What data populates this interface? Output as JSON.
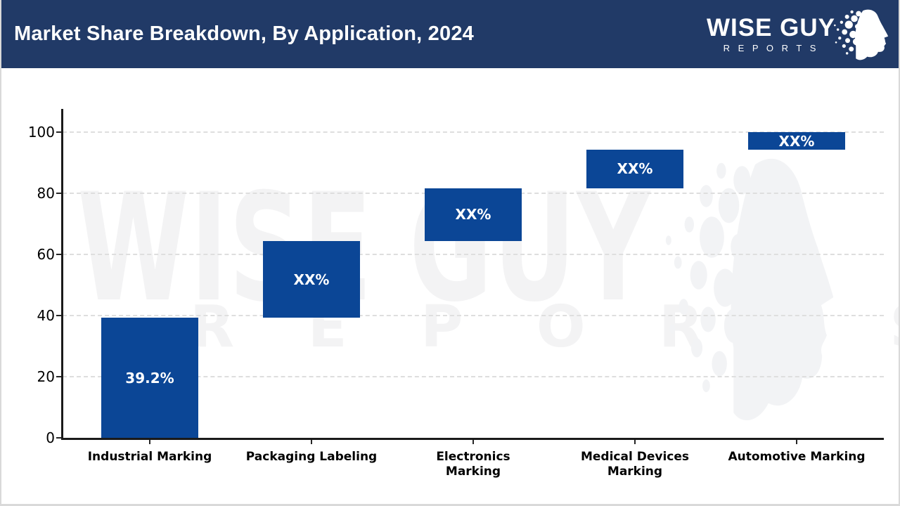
{
  "header": {
    "title": "Market Share Breakdown, By Application, 2024",
    "logo": {
      "primary": "WISE GUY",
      "secondary": "R E P O R T S"
    }
  },
  "watermark": {
    "primary": "WISE GUY",
    "secondary": "R E P O R T S"
  },
  "colors": {
    "header_bg": "#213a67",
    "bar": "#0b4696",
    "bar_label": "#ffffff",
    "gridline": "#dedede",
    "axis": "#1a1a1a",
    "watermark": "#f2f3f5"
  },
  "chart_data": {
    "type": "bar",
    "variant": "waterfall",
    "title": "Market Share Breakdown, By Application, 2024",
    "categories": [
      "Industrial Marking",
      "Packaging Labeling",
      "Electronics\nMarking",
      "Medical Devices\nMarking",
      "Automotive Marking"
    ],
    "segments": [
      {
        "category": "Industrial Marking",
        "start": 0,
        "end": 39.2,
        "value_label": "39.2%"
      },
      {
        "category": "Packaging Labeling",
        "start": 39.2,
        "end": 64.3,
        "value_label": "XX%"
      },
      {
        "category": "Electronics Marking",
        "start": 64.3,
        "end": 81.7,
        "value_label": "XX%"
      },
      {
        "category": "Medical Devices Marking",
        "start": 81.7,
        "end": 94.2,
        "value_label": "XX%"
      },
      {
        "category": "Automotive Marking",
        "start": 94.2,
        "end": 100,
        "value_label": "XX%"
      }
    ],
    "ylim": [
      0,
      106
    ],
    "yticks": [
      0,
      20,
      40,
      60,
      80,
      100
    ],
    "xlabel": "",
    "ylabel": "",
    "grid": "horizontal dashed",
    "legend": "none",
    "bar_color": "#0b4696",
    "value_label_color": "#ffffff"
  }
}
